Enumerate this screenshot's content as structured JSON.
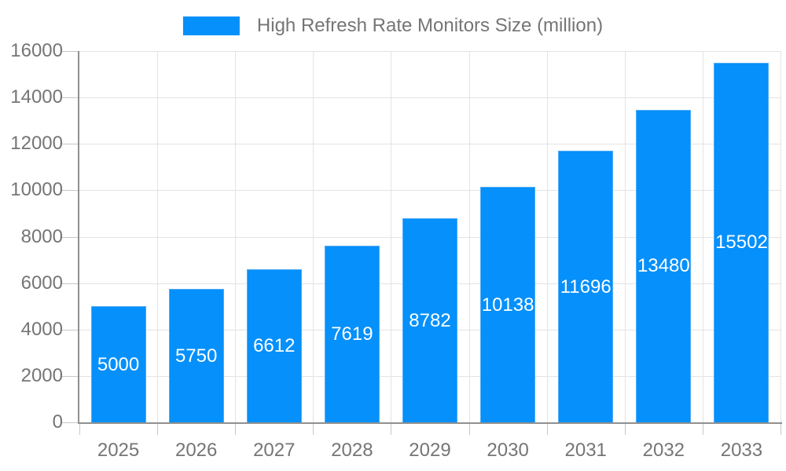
{
  "colors": {
    "bar": "#0590FB",
    "bar_border": "#4FACF7",
    "bar_value_text": "#FFFFFF",
    "axis_text": "#757575",
    "axis_line": "#909090",
    "grid_line": "#E3E3E3",
    "tick": "#C6C6C6",
    "background": "#FFFFFF"
  },
  "chart_data": {
    "type": "bar",
    "title": "",
    "categories": [
      "2025",
      "2026",
      "2027",
      "2028",
      "2029",
      "2030",
      "2031",
      "2032",
      "2033"
    ],
    "series": [
      {
        "name": "High Refresh Rate Monitors Size (million)",
        "values": [
          5000,
          5750,
          6612,
          7619,
          8782,
          10138,
          11696,
          13480,
          15502
        ]
      }
    ],
    "xlabel": "",
    "ylabel": "",
    "ylim": [
      0,
      16000
    ],
    "yticks": [
      0,
      2000,
      4000,
      6000,
      8000,
      10000,
      12000,
      14000,
      16000
    ],
    "grid": true,
    "legend_position": "top",
    "data_labels": "inside-center"
  }
}
